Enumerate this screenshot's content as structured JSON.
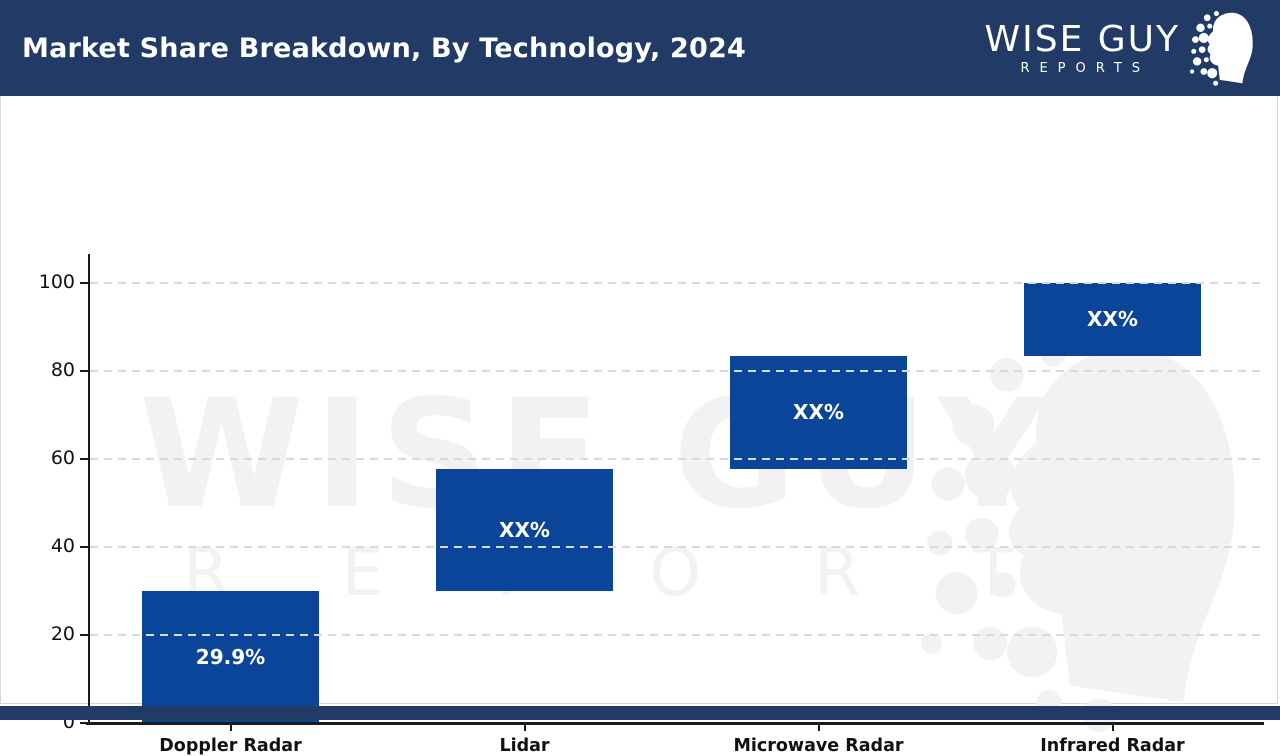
{
  "header": {
    "title": "Market Share Breakdown, By Technology, 2024",
    "brand": {
      "line1": "WISE GUY",
      "line2": "REPORTS"
    }
  },
  "watermark": {
    "line1": "WISE GUY",
    "line2": "R E P O R T S",
    "face_icon": "dotted-head-profile"
  },
  "colors": {
    "header_bg": "#213a66",
    "footer_bg": "#213a66",
    "bar": "#0a4599",
    "bar_label_text": "#ffffff",
    "gridline": "#d9d9d9",
    "axis": "#1a1a1a",
    "watermark": "#f2f2f4"
  },
  "chart_data": {
    "type": "bar",
    "subtype": "waterfall",
    "title": "Market Share Breakdown, By Technology, 2024",
    "xlabel": "",
    "ylabel": "",
    "categories": [
      "Doppler Radar",
      "Lidar",
      "Microwave Radar",
      "Infrared Radar"
    ],
    "segments": [
      {
        "category": "Doppler Radar",
        "start": 0,
        "end": 29.9,
        "label": "29.9%"
      },
      {
        "category": "Lidar",
        "start": 29.9,
        "end": 57.6,
        "label": "XX%"
      },
      {
        "category": "Microwave Radar",
        "start": 57.6,
        "end": 83.4,
        "label": "XX%"
      },
      {
        "category": "Infrared Radar",
        "start": 83.4,
        "end": 100,
        "label": "XX%"
      }
    ],
    "yticks": [
      0,
      20,
      40,
      60,
      80,
      100
    ],
    "ylim": [
      0,
      106
    ],
    "grid": "horizontal dashed, drawn over bars",
    "legend": "none"
  }
}
